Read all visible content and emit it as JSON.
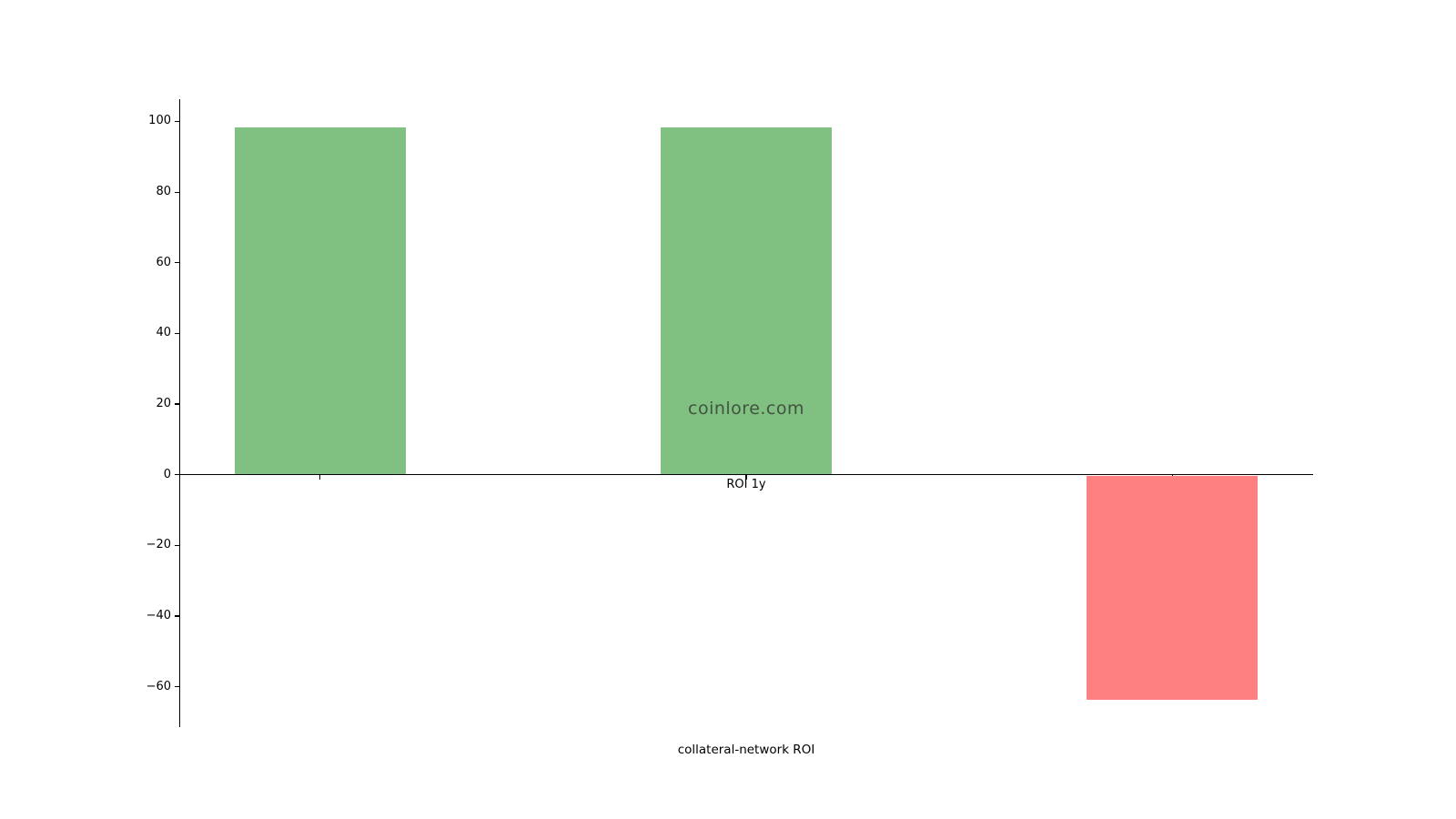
{
  "chart_data": {
    "type": "bar",
    "title": "collateral-network ROI",
    "watermark": "coinlore.com",
    "categories": [
      "",
      "ROI 1y",
      ""
    ],
    "values": [
      98.4,
      98.4,
      -63.8
    ],
    "series": [
      {
        "name": "collateral-network ROI",
        "values": [
          98.4,
          98.4,
          -63.8
        ]
      }
    ],
    "bar_colors": [
      "#80c080",
      "#80c080",
      "#ff8080"
    ],
    "positive_color": "#80c080",
    "negative_color": "#ff8080",
    "yticks": [
      100,
      80,
      60,
      40,
      20,
      0,
      -20,
      -40,
      -60
    ],
    "ylim": [
      -71.4,
      106.3
    ],
    "xlabel": "",
    "ylabel": "",
    "grid": false,
    "legend": null,
    "axis_color": "#000000",
    "text_color": "#000000",
    "background_color": "#ffffff"
  }
}
